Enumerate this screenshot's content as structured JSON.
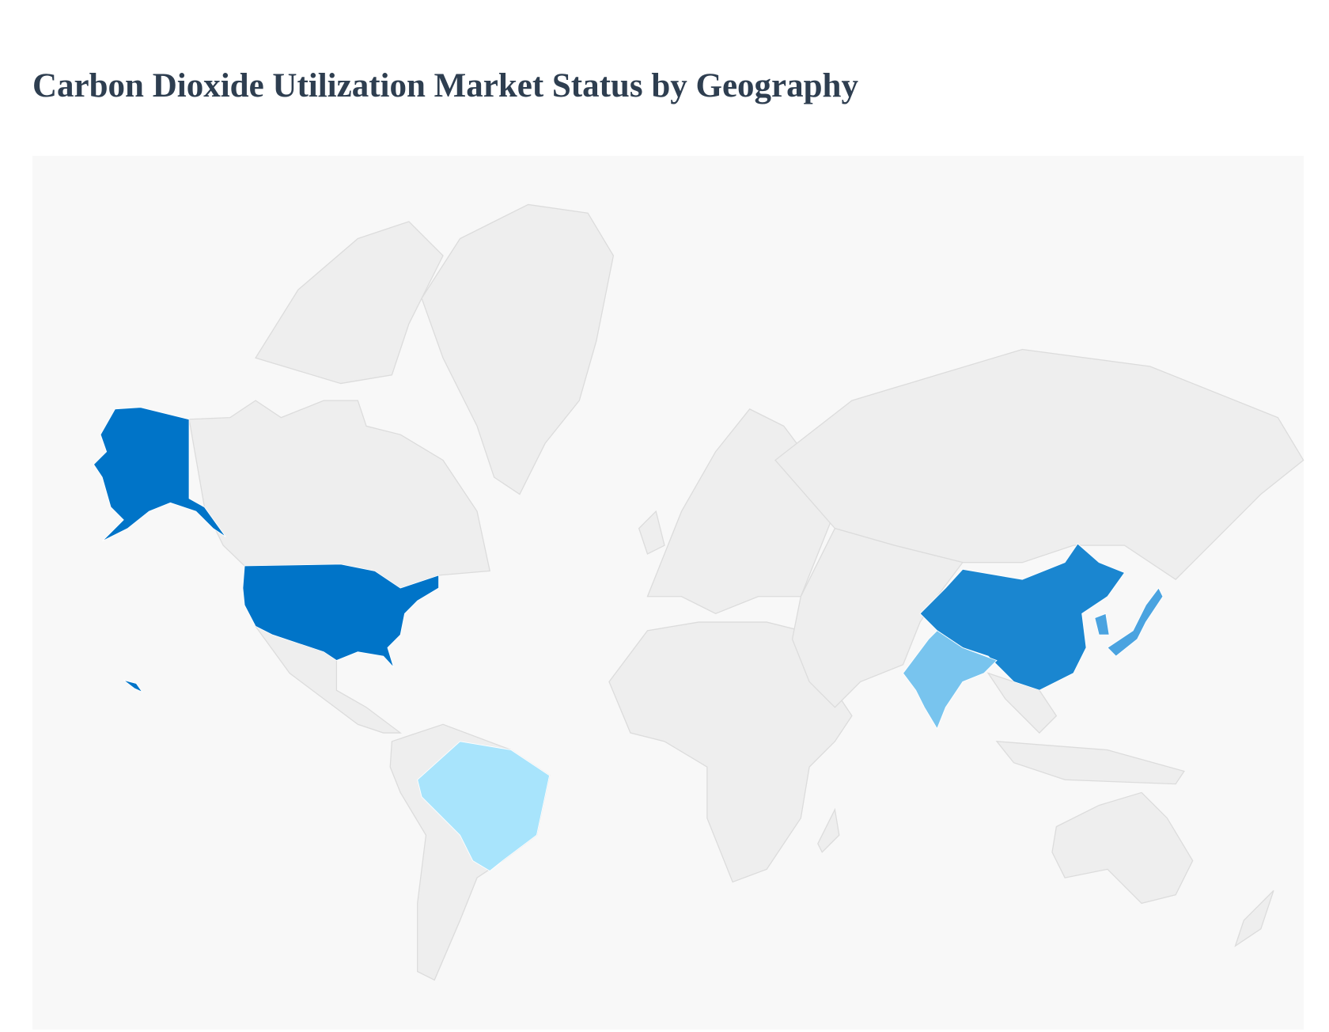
{
  "title": "Carbon Dioxide Utilization Market Status by Geography",
  "map": {
    "background_color": "#f8f8f8",
    "default_land_color": "#eeeeee",
    "border_color": "#dcdcdc",
    "highlighted_regions": [
      {
        "country": "United States",
        "color": "#0074c8"
      },
      {
        "country": "China",
        "color": "#1a86d0"
      },
      {
        "country": "Japan",
        "color": "#4aa3e0"
      },
      {
        "country": "South Korea",
        "color": "#4aa3e0"
      },
      {
        "country": "India",
        "color": "#78c4ee"
      },
      {
        "country": "Brazil",
        "color": "#a8e4fc"
      }
    ]
  }
}
